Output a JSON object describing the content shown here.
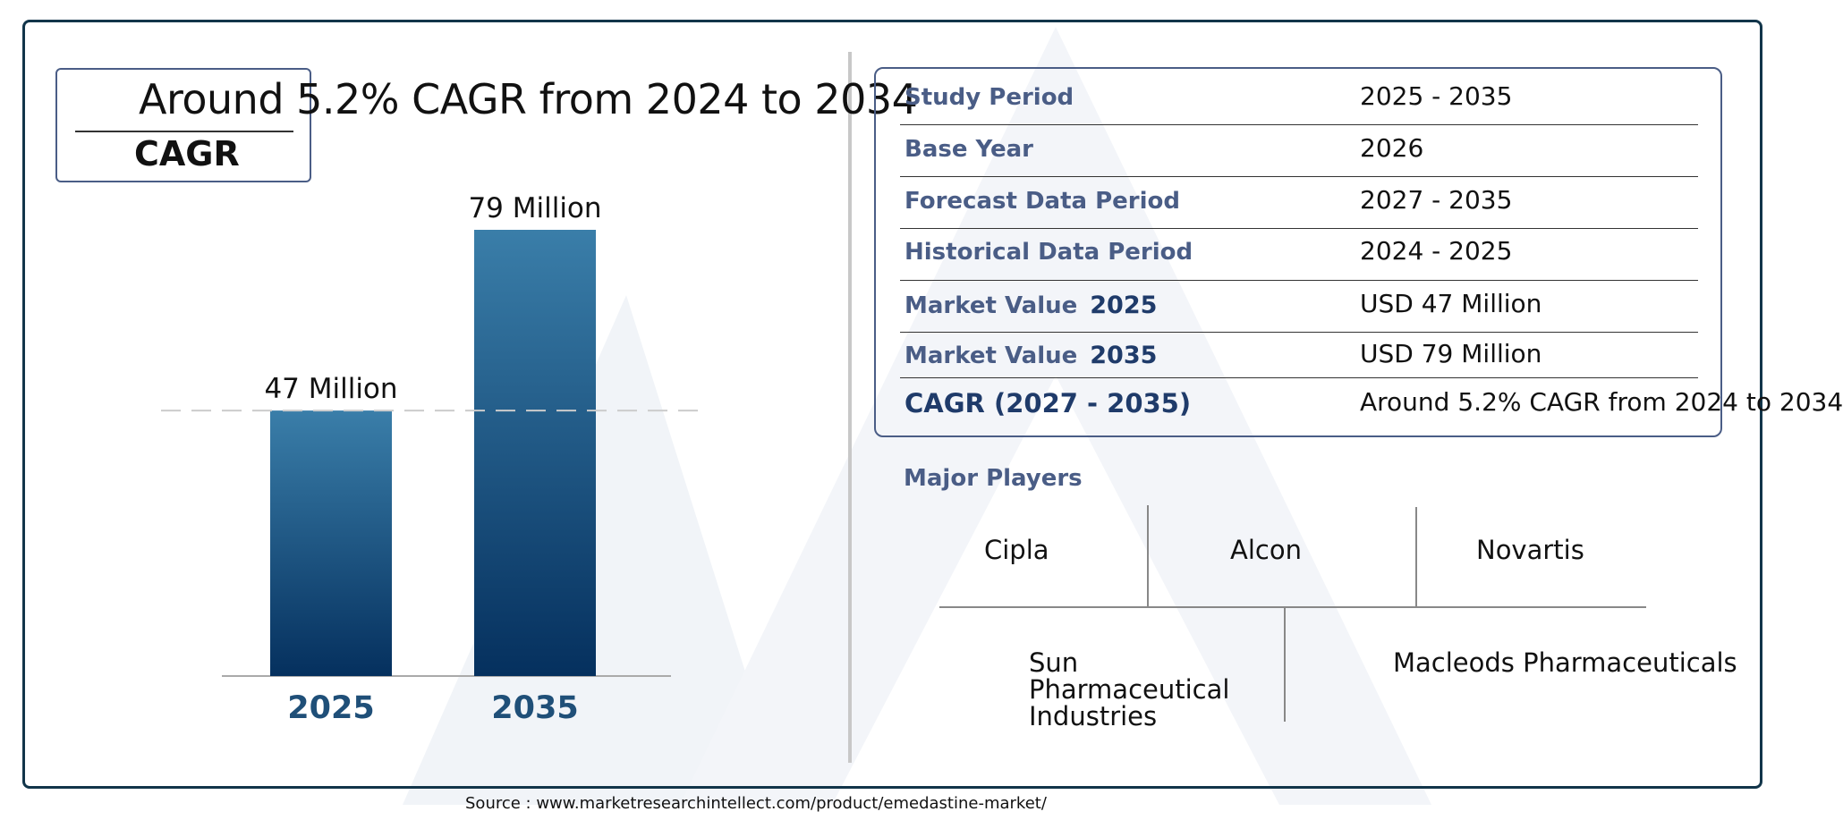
{
  "cagr_box": {
    "heading": "Around 5.2% CAGR from 2024 to 2034",
    "label": "CAGR"
  },
  "chart_data": {
    "type": "bar",
    "categories": [
      "2025",
      "2035"
    ],
    "values": [
      47,
      79
    ],
    "data_labels": [
      "47 Million",
      "79 Million"
    ],
    "unit": "Million",
    "reference_line": 47,
    "ylim": [
      0,
      79
    ],
    "grid": false,
    "colors": {
      "bar_top": "#3a7ea9",
      "bar_bottom": "#05305e",
      "axis_label": "#1f4f78"
    }
  },
  "info_table": {
    "rows": [
      {
        "label": "Study Period",
        "year": "",
        "value": "2025 - 2035"
      },
      {
        "label": "Base Year",
        "year": "",
        "value": "2026"
      },
      {
        "label": "Forecast Data Period",
        "year": "",
        "value": "2027 - 2035"
      },
      {
        "label": "Historical Data Period",
        "year": "",
        "value": "2024 - 2025"
      },
      {
        "label": "Market Value",
        "year": "2025",
        "value": "USD 47 Million"
      },
      {
        "label": "Market Value",
        "year": "2035",
        "value": "USD 79 Million"
      },
      {
        "label": "CAGR (2027 - 2035)",
        "year": "",
        "value": "Around 5.2% CAGR from 2024 to 2034"
      }
    ]
  },
  "players": {
    "title": "Major Players",
    "items": [
      "Cipla",
      "Alcon",
      "Novartis",
      "Sun Pharmaceutical Industries",
      "Macleods Pharmaceuticals"
    ]
  },
  "source": "Source : www.marketresearchintellect.com/product/emedastine-market/"
}
